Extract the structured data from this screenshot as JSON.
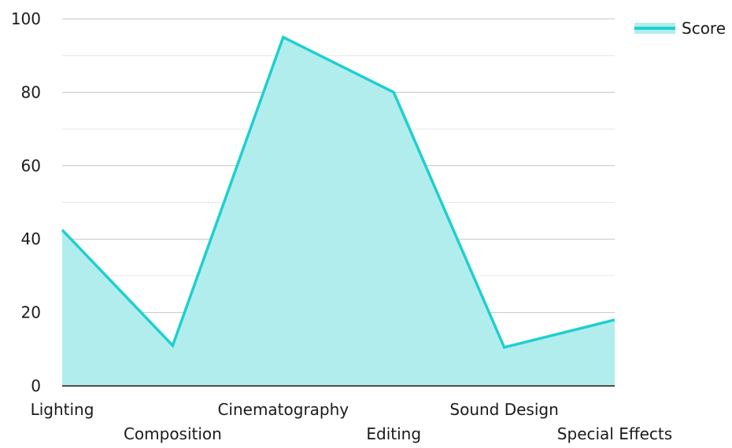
{
  "chart_data": {
    "type": "area",
    "title": "",
    "xlabel": "",
    "ylabel": "",
    "categories": [
      "Lighting",
      "Composition",
      "Cinematography",
      "Editing",
      "Sound Design",
      "Special Effects"
    ],
    "series": [
      {
        "name": "Score",
        "values": [
          42.5,
          11,
          95,
          80,
          10.5,
          18
        ],
        "line_color": "#1fcfcf",
        "fill_color": "#b2eded"
      }
    ],
    "ylim": [
      0,
      100
    ],
    "yticks": [
      0,
      20,
      40,
      60,
      80,
      100
    ],
    "minor_grid": [
      10,
      30,
      50,
      70,
      90
    ],
    "grid": true,
    "legend_position": "top-right",
    "x_label_layout": "staggered-two-rows"
  }
}
